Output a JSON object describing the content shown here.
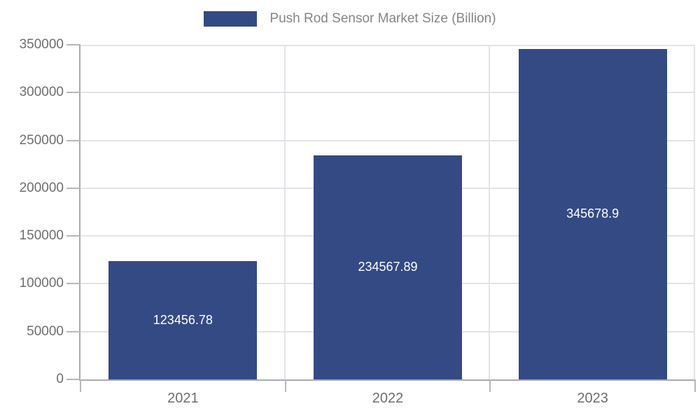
{
  "legend": {
    "label": "Push Rod Sensor Market Size (Billion)"
  },
  "colors": {
    "bar": "#344a85",
    "grid": "#e3e3e7",
    "axis": "#a9a9b1",
    "tick": "#b5b7bf",
    "axis_label_text": "#6e6e6e",
    "legend_text": "#858585",
    "value_text": "#ffffff"
  },
  "chart_data": {
    "type": "bar",
    "title": "Push Rod Sensor Market Size (Billion)",
    "categories": [
      "2021",
      "2022",
      "2023"
    ],
    "values": [
      123456.78,
      234567.89,
      345678.9
    ],
    "value_labels": [
      "123456.78",
      "234567.89",
      "345678.9"
    ],
    "series": [
      {
        "name": "Push Rod Sensor Market Size (Billion)",
        "values": [
          123456.78,
          234567.89,
          345678.9
        ]
      }
    ],
    "xlabel": "",
    "ylabel": "",
    "ylim": [
      0,
      350000
    ],
    "ytick_values": [
      0,
      50000,
      100000,
      150000,
      200000,
      250000,
      300000,
      350000
    ],
    "ytick_labels": [
      "0",
      "50000",
      "100000",
      "150000",
      "200000",
      "250000",
      "300000",
      "350000"
    ],
    "grid": "on",
    "legend_position": "top-center",
    "bar_label_position": "inside-center"
  }
}
